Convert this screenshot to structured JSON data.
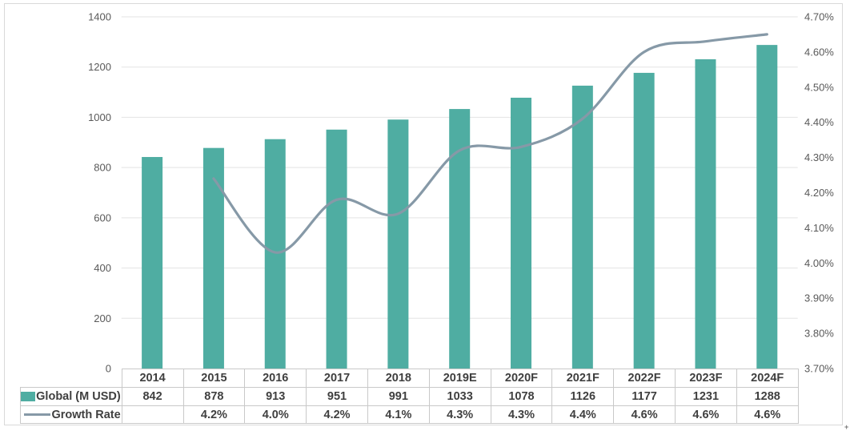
{
  "chart_data": {
    "type": "bar+line",
    "title": "",
    "categories": [
      "2014",
      "2015",
      "2016",
      "2017",
      "2018",
      "2019E",
      "2020F",
      "2021F",
      "2022F",
      "2023F",
      "2024F"
    ],
    "series": [
      {
        "name": "Global (M USD)",
        "type": "bar",
        "axis": "left",
        "color": "#4FADA2",
        "values": [
          842,
          878,
          913,
          951,
          991,
          1033,
          1078,
          1126,
          1177,
          1231,
          1288
        ]
      },
      {
        "name": "Growth Rate",
        "type": "line",
        "axis": "right",
        "color": "#8699A7",
        "smooth": true,
        "values_pct": [
          null,
          4.24,
          4.03,
          4.18,
          4.14,
          4.32,
          4.33,
          4.41,
          4.6,
          4.63,
          4.65
        ],
        "display_values": [
          "",
          "4.2%",
          "4.0%",
          "4.2%",
          "4.1%",
          "4.3%",
          "4.3%",
          "4.4%",
          "4.6%",
          "4.6%",
          "4.6%"
        ]
      }
    ],
    "left_axis": {
      "min": 0,
      "max": 1400,
      "step": 200,
      "tick_labels": [
        "0",
        "200",
        "400",
        "600",
        "800",
        "1000",
        "1200",
        "1400"
      ]
    },
    "right_axis": {
      "min": 3.7,
      "max": 4.7,
      "step": 0.1,
      "tick_labels": [
        "3.70%",
        "3.80%",
        "3.90%",
        "4.00%",
        "4.10%",
        "4.20%",
        "4.30%",
        "4.40%",
        "4.50%",
        "4.60%",
        "4.70%"
      ]
    },
    "gridlines": "horizontal-primary-only",
    "legend_position": "data-table-left-column"
  },
  "colors": {
    "bar": "#4FADA2",
    "line": "#8699A7",
    "gridline": "#E3E3E3",
    "table_border": "#C9C9C9",
    "axis_text": "#595959",
    "table_text": "#3F3F3F",
    "frame_border": "#D9D9D9",
    "background": "#FFFFFF"
  },
  "decorations": {
    "corner_mark": "+"
  }
}
